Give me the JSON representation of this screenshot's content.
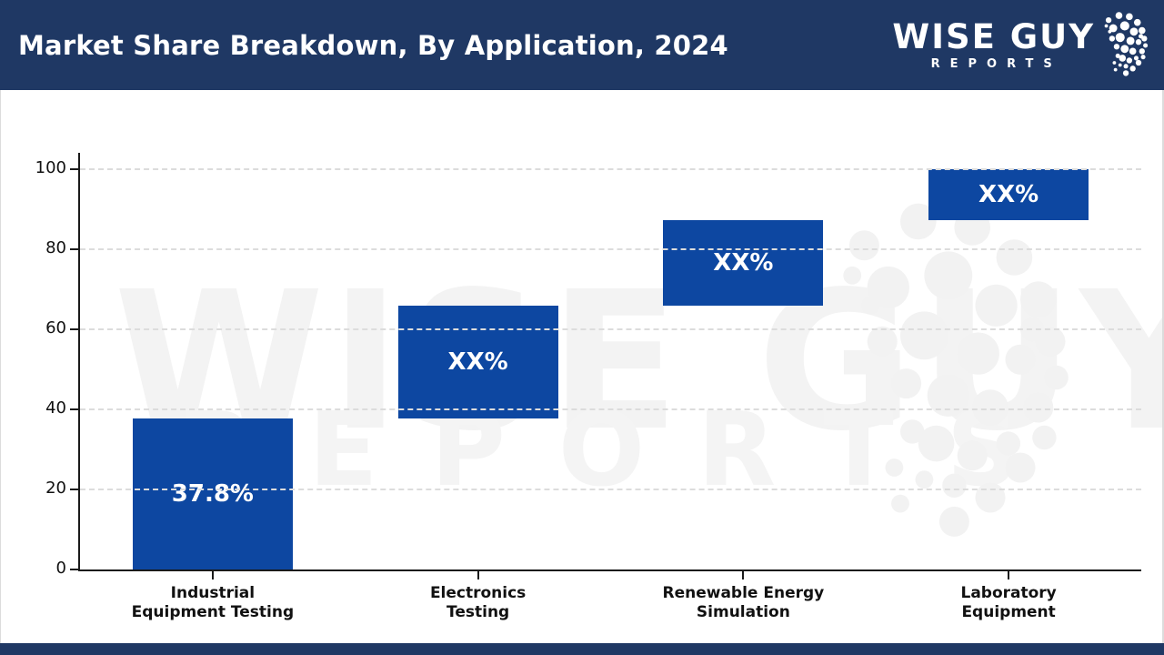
{
  "header": {
    "title": "Market Share Breakdown, By Application, 2024"
  },
  "logo": {
    "line1": "WISE GUY",
    "line2": "REPORTS"
  },
  "watermark": {
    "line1": "WISE GUY",
    "line2": "REPORTS"
  },
  "colors": {
    "header_bg": "#1f3864",
    "footer_bg": "#1f3864",
    "bar": "#0d47a1",
    "bar_label": "#ffffff",
    "grid": "#dcdcdc",
    "axis": "#1a1a1a"
  },
  "chart_data": {
    "type": "bar",
    "subtype": "waterfall",
    "title": "Market Share Breakdown, By Application, 2024",
    "xlabel": "",
    "ylabel": "",
    "categories": [
      "Industrial\nEquipment Testing",
      "Electronics\nTesting",
      "Renewable Energy\nSimulation",
      "Laboratory\nEquipment"
    ],
    "segments": [
      {
        "category": "Industrial Equipment Testing",
        "start": 0,
        "end": 37.8,
        "label": "37.8%"
      },
      {
        "category": "Electronics Testing",
        "start": 37.8,
        "end": 66,
        "label": "XX%"
      },
      {
        "category": "Renewable Energy Simulation",
        "start": 66,
        "end": 87.3,
        "label": "XX%"
      },
      {
        "category": "Laboratory Equipment",
        "start": 87.3,
        "end": 100,
        "label": "XX%"
      }
    ],
    "yticks": [
      0,
      20,
      40,
      60,
      80,
      100
    ],
    "ylim": [
      0,
      104
    ],
    "grid": "horizontal-dashed-above-bars",
    "legend": "none"
  }
}
